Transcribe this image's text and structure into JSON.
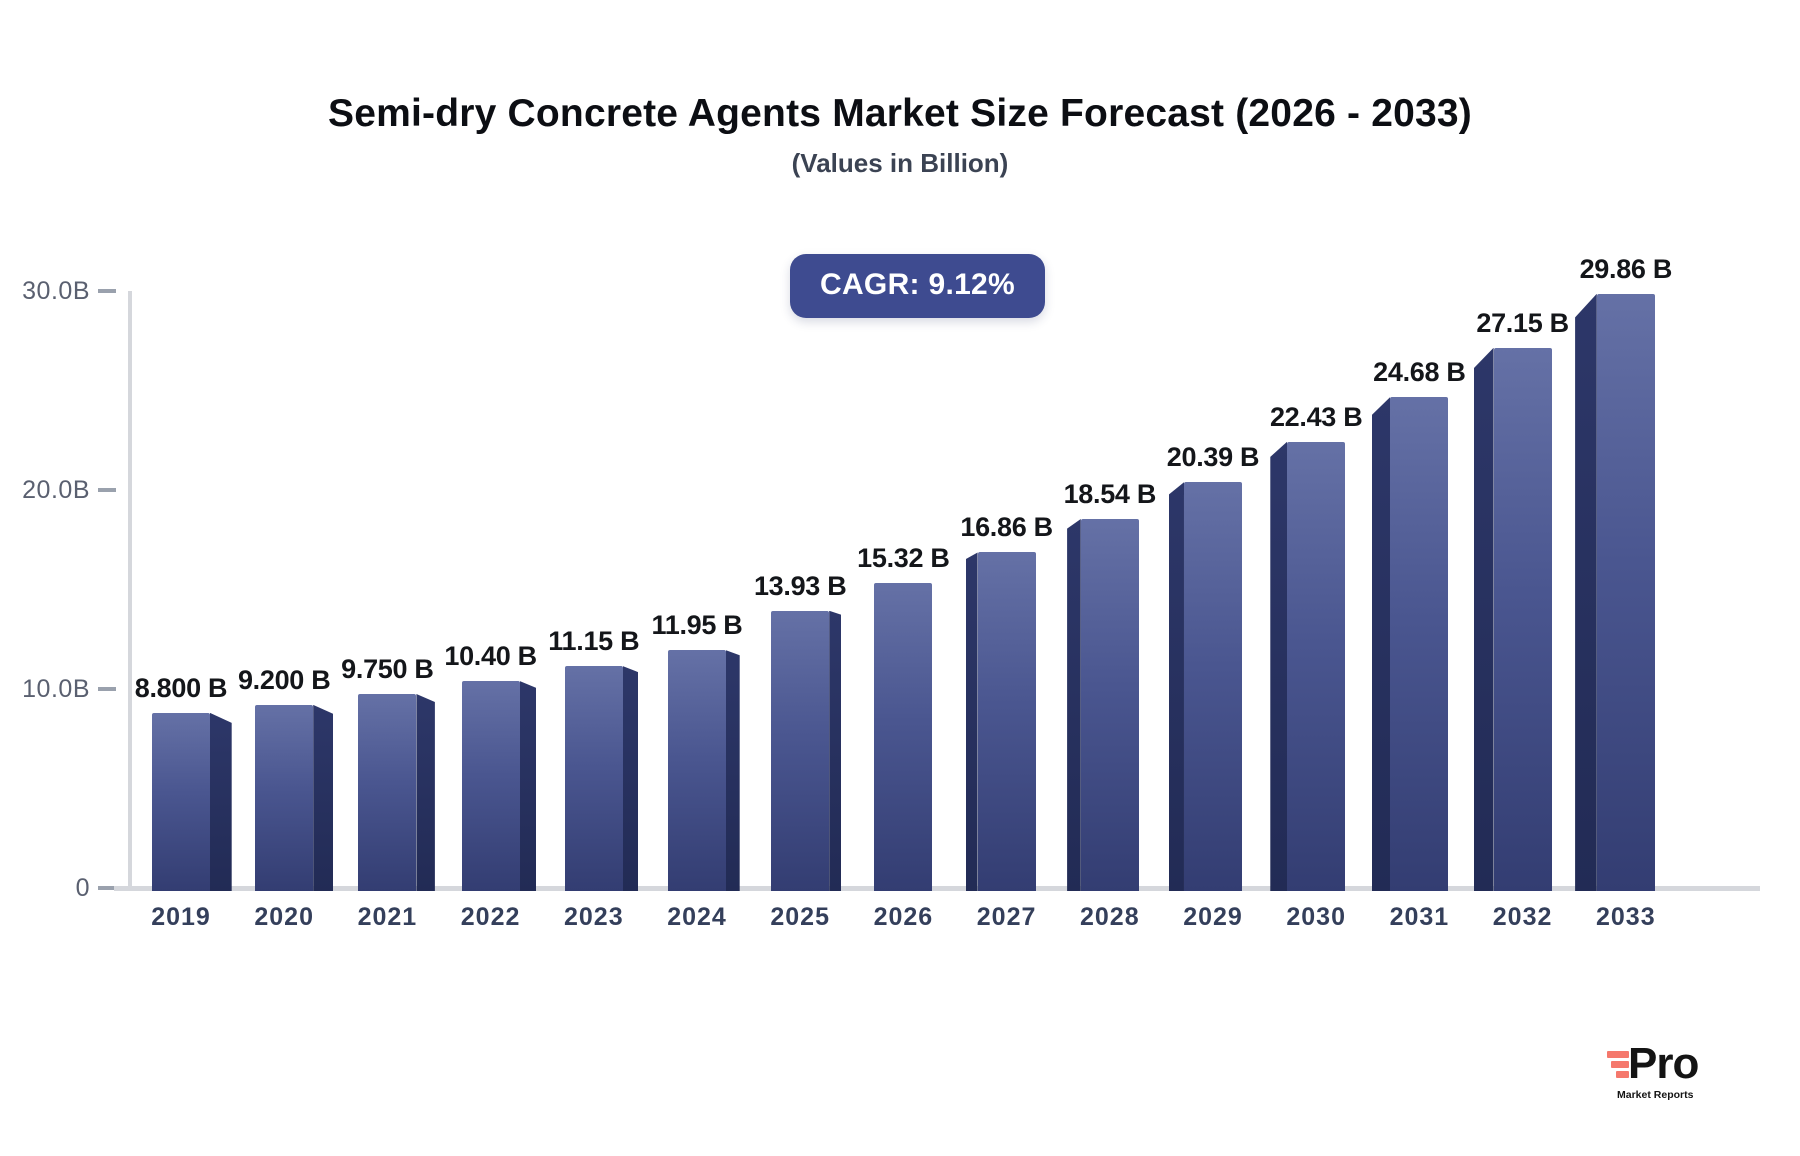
{
  "header": {
    "title": "Semi-dry Concrete Agents Market Size Forecast (2026 - 2033)",
    "subtitle": "(Values in Billion)",
    "cagr_label": "CAGR: 9.12%"
  },
  "chart_data": {
    "type": "bar",
    "title": "Semi-dry Concrete Agents Market Size Forecast (2026 - 2033)",
    "subtitle": "(Values in Billion)",
    "cagr_percent": 9.12,
    "categories": [
      "2019",
      "2020",
      "2021",
      "2022",
      "2023",
      "2024",
      "2025",
      "2026",
      "2027",
      "2028",
      "2029",
      "2030",
      "2031",
      "2032",
      "2033"
    ],
    "values": [
      8.8,
      9.2,
      9.75,
      10.4,
      11.15,
      11.95,
      13.93,
      15.32,
      16.86,
      18.54,
      20.39,
      22.43,
      24.68,
      27.15,
      29.86
    ],
    "value_labels": [
      "8.800 B",
      "9.200 B",
      "9.750 B",
      "10.40 B",
      "11.15 B",
      "11.95 B",
      "13.93 B",
      "15.32 B",
      "16.86 B",
      "18.54 B",
      "20.39 B",
      "22.43 B",
      "24.68 B",
      "27.15 B",
      "29.86 B"
    ],
    "ylim": [
      0,
      30
    ],
    "yticks": [
      {
        "value": 0,
        "label": "0"
      },
      {
        "value": 10,
        "label": "10.0B"
      },
      {
        "value": 20,
        "label": "20.0B"
      },
      {
        "value": 30,
        "label": "30.0B"
      }
    ],
    "grid": false,
    "legend": false,
    "bar_style": "3d-perspective"
  },
  "colors": {
    "title_text": "#0c0e13",
    "subtitle_text": "#3b4353",
    "cagr_badge_bg": "#3e4b90",
    "bar_face_top": "#6571a6",
    "bar_face_mid": "#4a5690",
    "bar_face_bottom": "#333d72",
    "bar_side_top": "#2d3769",
    "bar_side_bottom": "#222b55",
    "axis_line": "#d5d7dc",
    "tick_dash": "#9aa1ad",
    "y_tick_text": "#5a6070",
    "x_tick_text": "#343f5b",
    "value_text": "#14161a",
    "logo_accent": "#f5786c",
    "logo_text_color": "#141414"
  },
  "branding": {
    "logo_text": "Pro",
    "logo_subtext": "Market Reports"
  }
}
